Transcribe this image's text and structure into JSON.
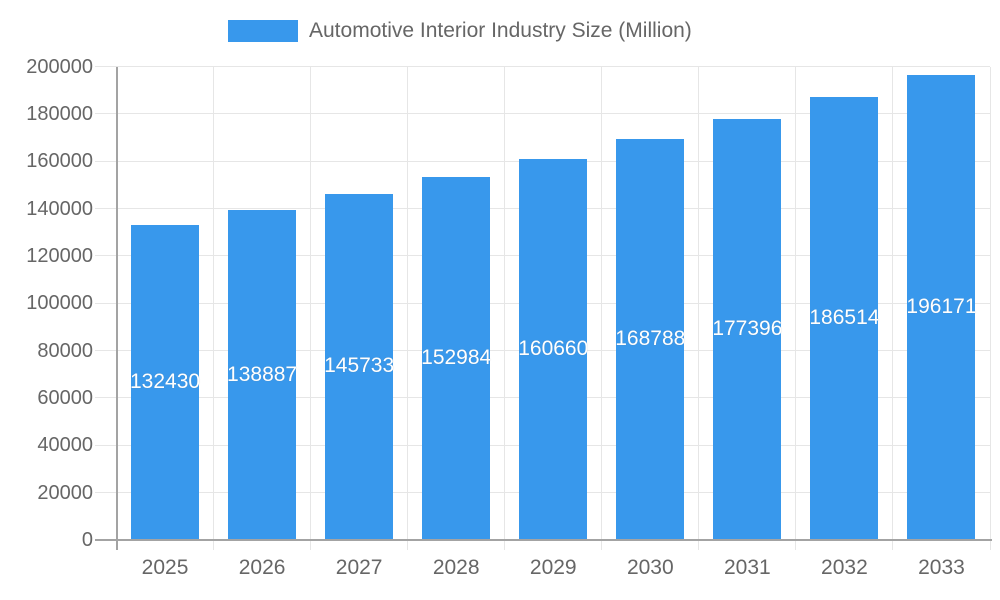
{
  "legend": {
    "label": "Automotive Interior Industry Size (Million)"
  },
  "chart_data": {
    "type": "bar",
    "title": "Automotive Interior Industry Size (Million)",
    "categories": [
      "2025",
      "2026",
      "2027",
      "2028",
      "2029",
      "2030",
      "2031",
      "2032",
      "2033"
    ],
    "series": [
      {
        "name": "Automotive Interior Industry Size (Million)",
        "color": "#3898EC",
        "values": [
          132430,
          138887,
          145733,
          152984,
          160660,
          168788,
          177396,
          186514,
          196171
        ]
      }
    ],
    "value_labels": [
      "132430",
      "138887",
      "145733",
      "152984",
      "160660",
      "168788",
      "177396",
      "186514",
      "196171"
    ],
    "ytick_labels": [
      "0",
      "20000",
      "40000",
      "60000",
      "80000",
      "100000",
      "120000",
      "140000",
      "160000",
      "180000",
      "200000"
    ],
    "ylim": [
      0,
      200000
    ],
    "ytick_step": 20000,
    "xlabel": "",
    "ylabel": "",
    "grid": true,
    "legend_position": "top",
    "value_label_position": "center-inside-bar"
  },
  "colors": {
    "bar": "#3898EC",
    "grid": "#e6e6e6",
    "axis": "#a3a3a3",
    "tick_text": "#666666",
    "legend_text": "#666666",
    "value_label": "#ffffff",
    "background": "#ffffff"
  }
}
